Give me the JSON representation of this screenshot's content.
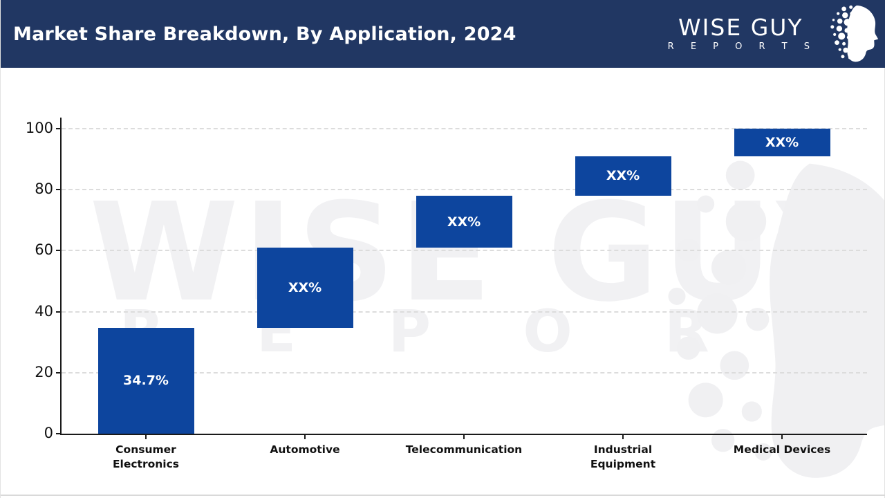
{
  "header": {
    "title": "Market Share Breakdown, By Application, 2024",
    "logo": {
      "name": "WISE GUY",
      "tagline": "R E P O R T S"
    }
  },
  "watermark": {
    "line1": "WISE GUY",
    "line2": "R E P O R T S"
  },
  "colors": {
    "header_bg": "#213763",
    "bar": "#0d459e",
    "grid": "#dcdcdc",
    "axis": "#1a1a1a",
    "bar_label": "#ffffff",
    "watermark": "#f1f1f3"
  },
  "chart_data": {
    "type": "bar",
    "subtype": "waterfall",
    "title": "Market Share Breakdown, By Application, 2024",
    "categories": [
      "Consumer\nElectronics",
      "Automotive",
      "Telecommunication",
      "Industrial\nEquipment",
      "Medical Devices"
    ],
    "segments": [
      {
        "category": "Consumer Electronics",
        "start": 0,
        "end": 34.7,
        "label": "34.7%"
      },
      {
        "category": "Automotive",
        "start": 34.7,
        "end": 61,
        "label": "XX%"
      },
      {
        "category": "Telecommunication",
        "start": 61,
        "end": 78,
        "label": "XX%"
      },
      {
        "category": "Industrial Equipment",
        "start": 78,
        "end": 91,
        "label": "XX%"
      },
      {
        "category": "Medical Devices",
        "start": 91,
        "end": 100,
        "label": "XX%"
      }
    ],
    "ylabel": "",
    "xlabel": "",
    "yticks": [
      0,
      20,
      40,
      60,
      80,
      100
    ],
    "ylim": [
      0,
      104
    ],
    "grid": "dashed-horizontal",
    "legend": "none",
    "bar_color": "#0d459e",
    "value_label_color": "#ffffff"
  }
}
